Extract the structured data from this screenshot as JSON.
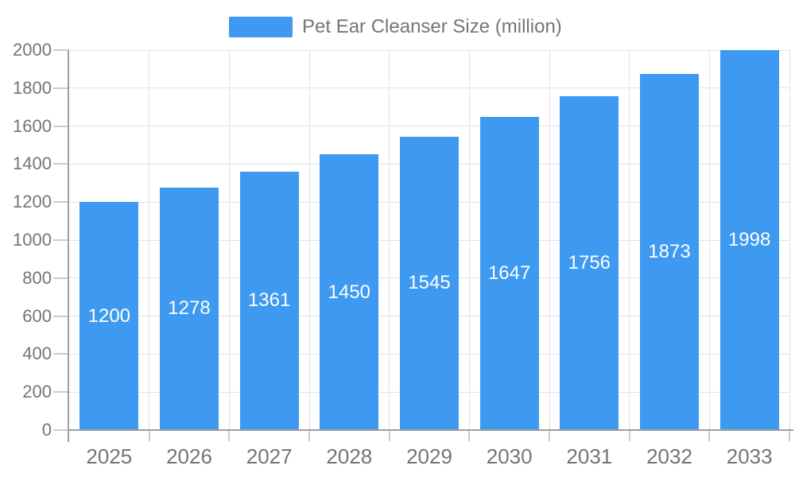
{
  "legend": {
    "label": "Pet Ear Cleanser Size (million)"
  },
  "chart_data": {
    "type": "bar",
    "title": "Pet Ear Cleanser Size (million)",
    "series_name": "Pet Ear Cleanser Size (million)",
    "categories": [
      "2025",
      "2026",
      "2027",
      "2028",
      "2029",
      "2030",
      "2031",
      "2032",
      "2033"
    ],
    "values": [
      1200,
      1278,
      1361,
      1450,
      1545,
      1647,
      1756,
      1873,
      1998
    ],
    "xlabel": "",
    "ylabel": "",
    "ylim": [
      0,
      2000
    ],
    "ytick_step": 200,
    "ytick_labels": [
      "0",
      "200",
      "400",
      "600",
      "800",
      "1000",
      "1200",
      "1400",
      "1600",
      "1800",
      "2000"
    ],
    "grid": true,
    "legend_position": "top-center",
    "value_labels": "inside-center",
    "colors": {
      "bar": "#3D9AF0",
      "value_label": "#FFFFFF",
      "axis_text": "#757575",
      "grid_line": "#E2E2E2",
      "axis_line": "#9E9E9E",
      "tick": "#CCCCCC",
      "background": "#FFFFFF"
    }
  }
}
